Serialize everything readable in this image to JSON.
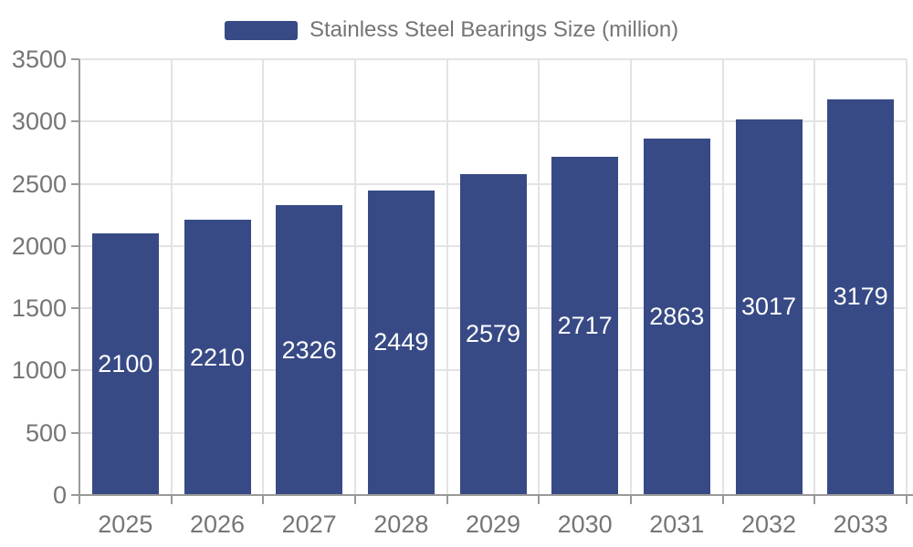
{
  "chart_data": {
    "type": "bar",
    "title": "Stainless Steel Bearings Size (million)",
    "series_name": "Stainless Steel Bearings Size (million)",
    "categories": [
      "2025",
      "2026",
      "2027",
      "2028",
      "2029",
      "2030",
      "2031",
      "2032",
      "2033"
    ],
    "values": [
      2100,
      2210,
      2326,
      2449,
      2579,
      2717,
      2863,
      3017,
      3179
    ],
    "xlabel": "",
    "ylabel": "",
    "ylim": [
      0,
      3500
    ],
    "ytick_step": 500,
    "y_tick_labels": [
      "0",
      "500",
      "1000",
      "1500",
      "2000",
      "2500",
      "3000",
      "3500"
    ],
    "grid": true,
    "legend_position": "top",
    "bar_labels_visible": true,
    "colors": {
      "bar": "#374a85",
      "bar_label": "#ffffff",
      "axis_line": "#999999",
      "grid_line": "#e3e3e3",
      "tick_text": "#757575",
      "legend_text": "#757575"
    }
  }
}
